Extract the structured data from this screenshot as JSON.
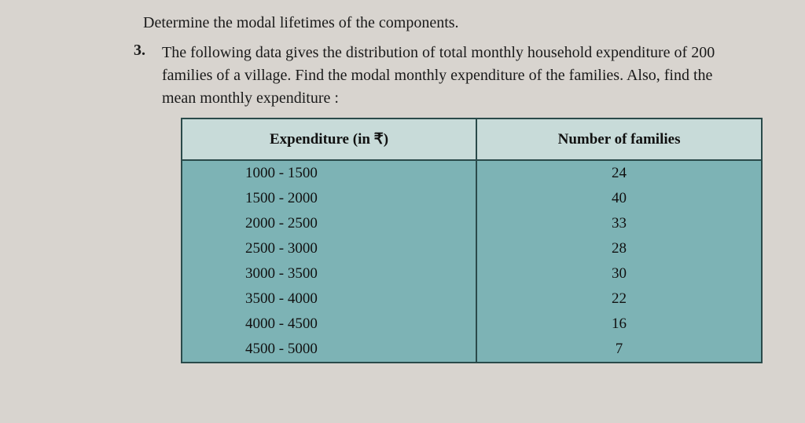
{
  "intro_line": "Determine the modal lifetimes of the components.",
  "question": {
    "number": "3.",
    "text_line1": "The following data gives the distribution of total monthly household expenditure of 200",
    "text_line2": "families of a village. Find the modal monthly expenditure of the families. Also, find the",
    "text_line3": "mean monthly expenditure :"
  },
  "table": {
    "headers": [
      "Expenditure (in ₹)",
      "Number of families"
    ],
    "rows": [
      {
        "range": "1000 - 1500",
        "count": "24"
      },
      {
        "range": "1500 - 2000",
        "count": "40"
      },
      {
        "range": "2000 - 2500",
        "count": "33"
      },
      {
        "range": "2500 - 3000",
        "count": "28"
      },
      {
        "range": "3000 - 3500",
        "count": "30"
      },
      {
        "range": "3500 - 4000",
        "count": "22"
      },
      {
        "range": "4000 - 4500",
        "count": "16"
      },
      {
        "range": "4500 - 5000",
        "count": "7"
      }
    ]
  }
}
